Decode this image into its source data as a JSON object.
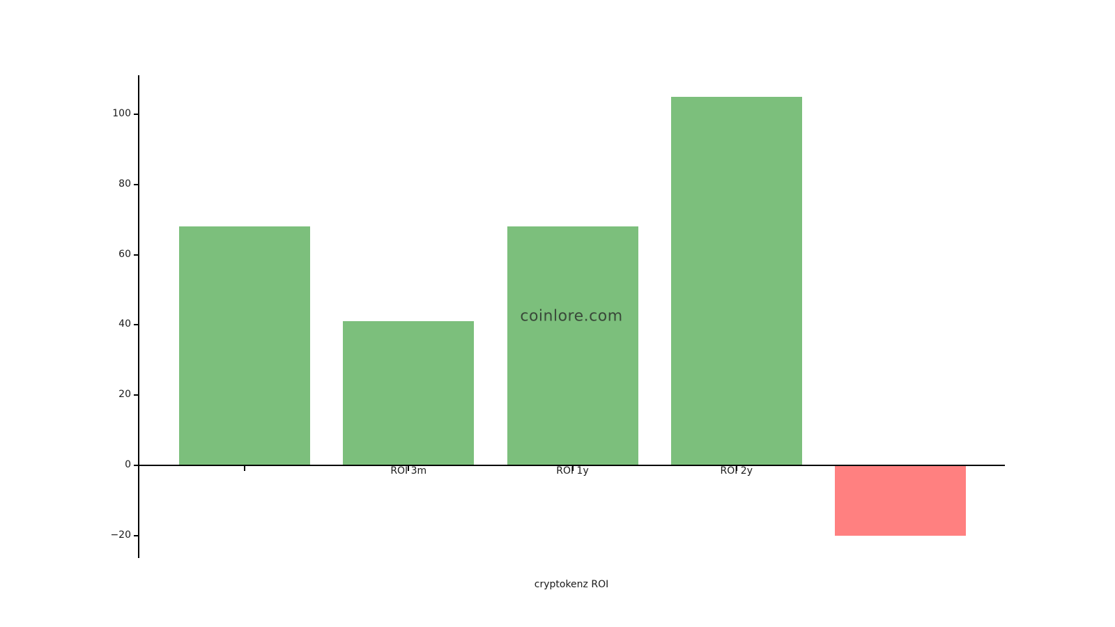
{
  "chart_data": {
    "type": "bar",
    "xlabel": "cryptokenz ROI",
    "watermark": "coinlore.com",
    "categories": [
      "",
      "ROI 3m",
      "ROI 1y",
      "ROI 2y",
      ""
    ],
    "values": [
      68,
      41,
      68,
      105,
      -20
    ],
    "bar_colors": [
      "#7cbf7c",
      "#7cbf7c",
      "#7cbf7c",
      "#7cbf7c",
      "#ff8080"
    ],
    "positive_color": "#7cbf7c",
    "negative_color": "#ff8080",
    "x_tick_marks": [
      true,
      true,
      true,
      true,
      false
    ],
    "y_ticks": [
      {
        "value": 100,
        "label": "100"
      },
      {
        "value": 80,
        "label": "80"
      },
      {
        "value": 60,
        "label": "60"
      },
      {
        "value": 40,
        "label": "40"
      },
      {
        "value": 20,
        "label": "20"
      },
      {
        "value": 0,
        "label": "0"
      },
      {
        "value": -20,
        "label": "−20"
      }
    ],
    "ylim": [
      -26.25,
      111.25
    ],
    "grid": false,
    "legend_position": "none",
    "axis_color": "#000000",
    "text_color": "#1a1a1a",
    "watermark_color": "rgba(38,38,38,0.78)",
    "background": "#ffffff"
  }
}
